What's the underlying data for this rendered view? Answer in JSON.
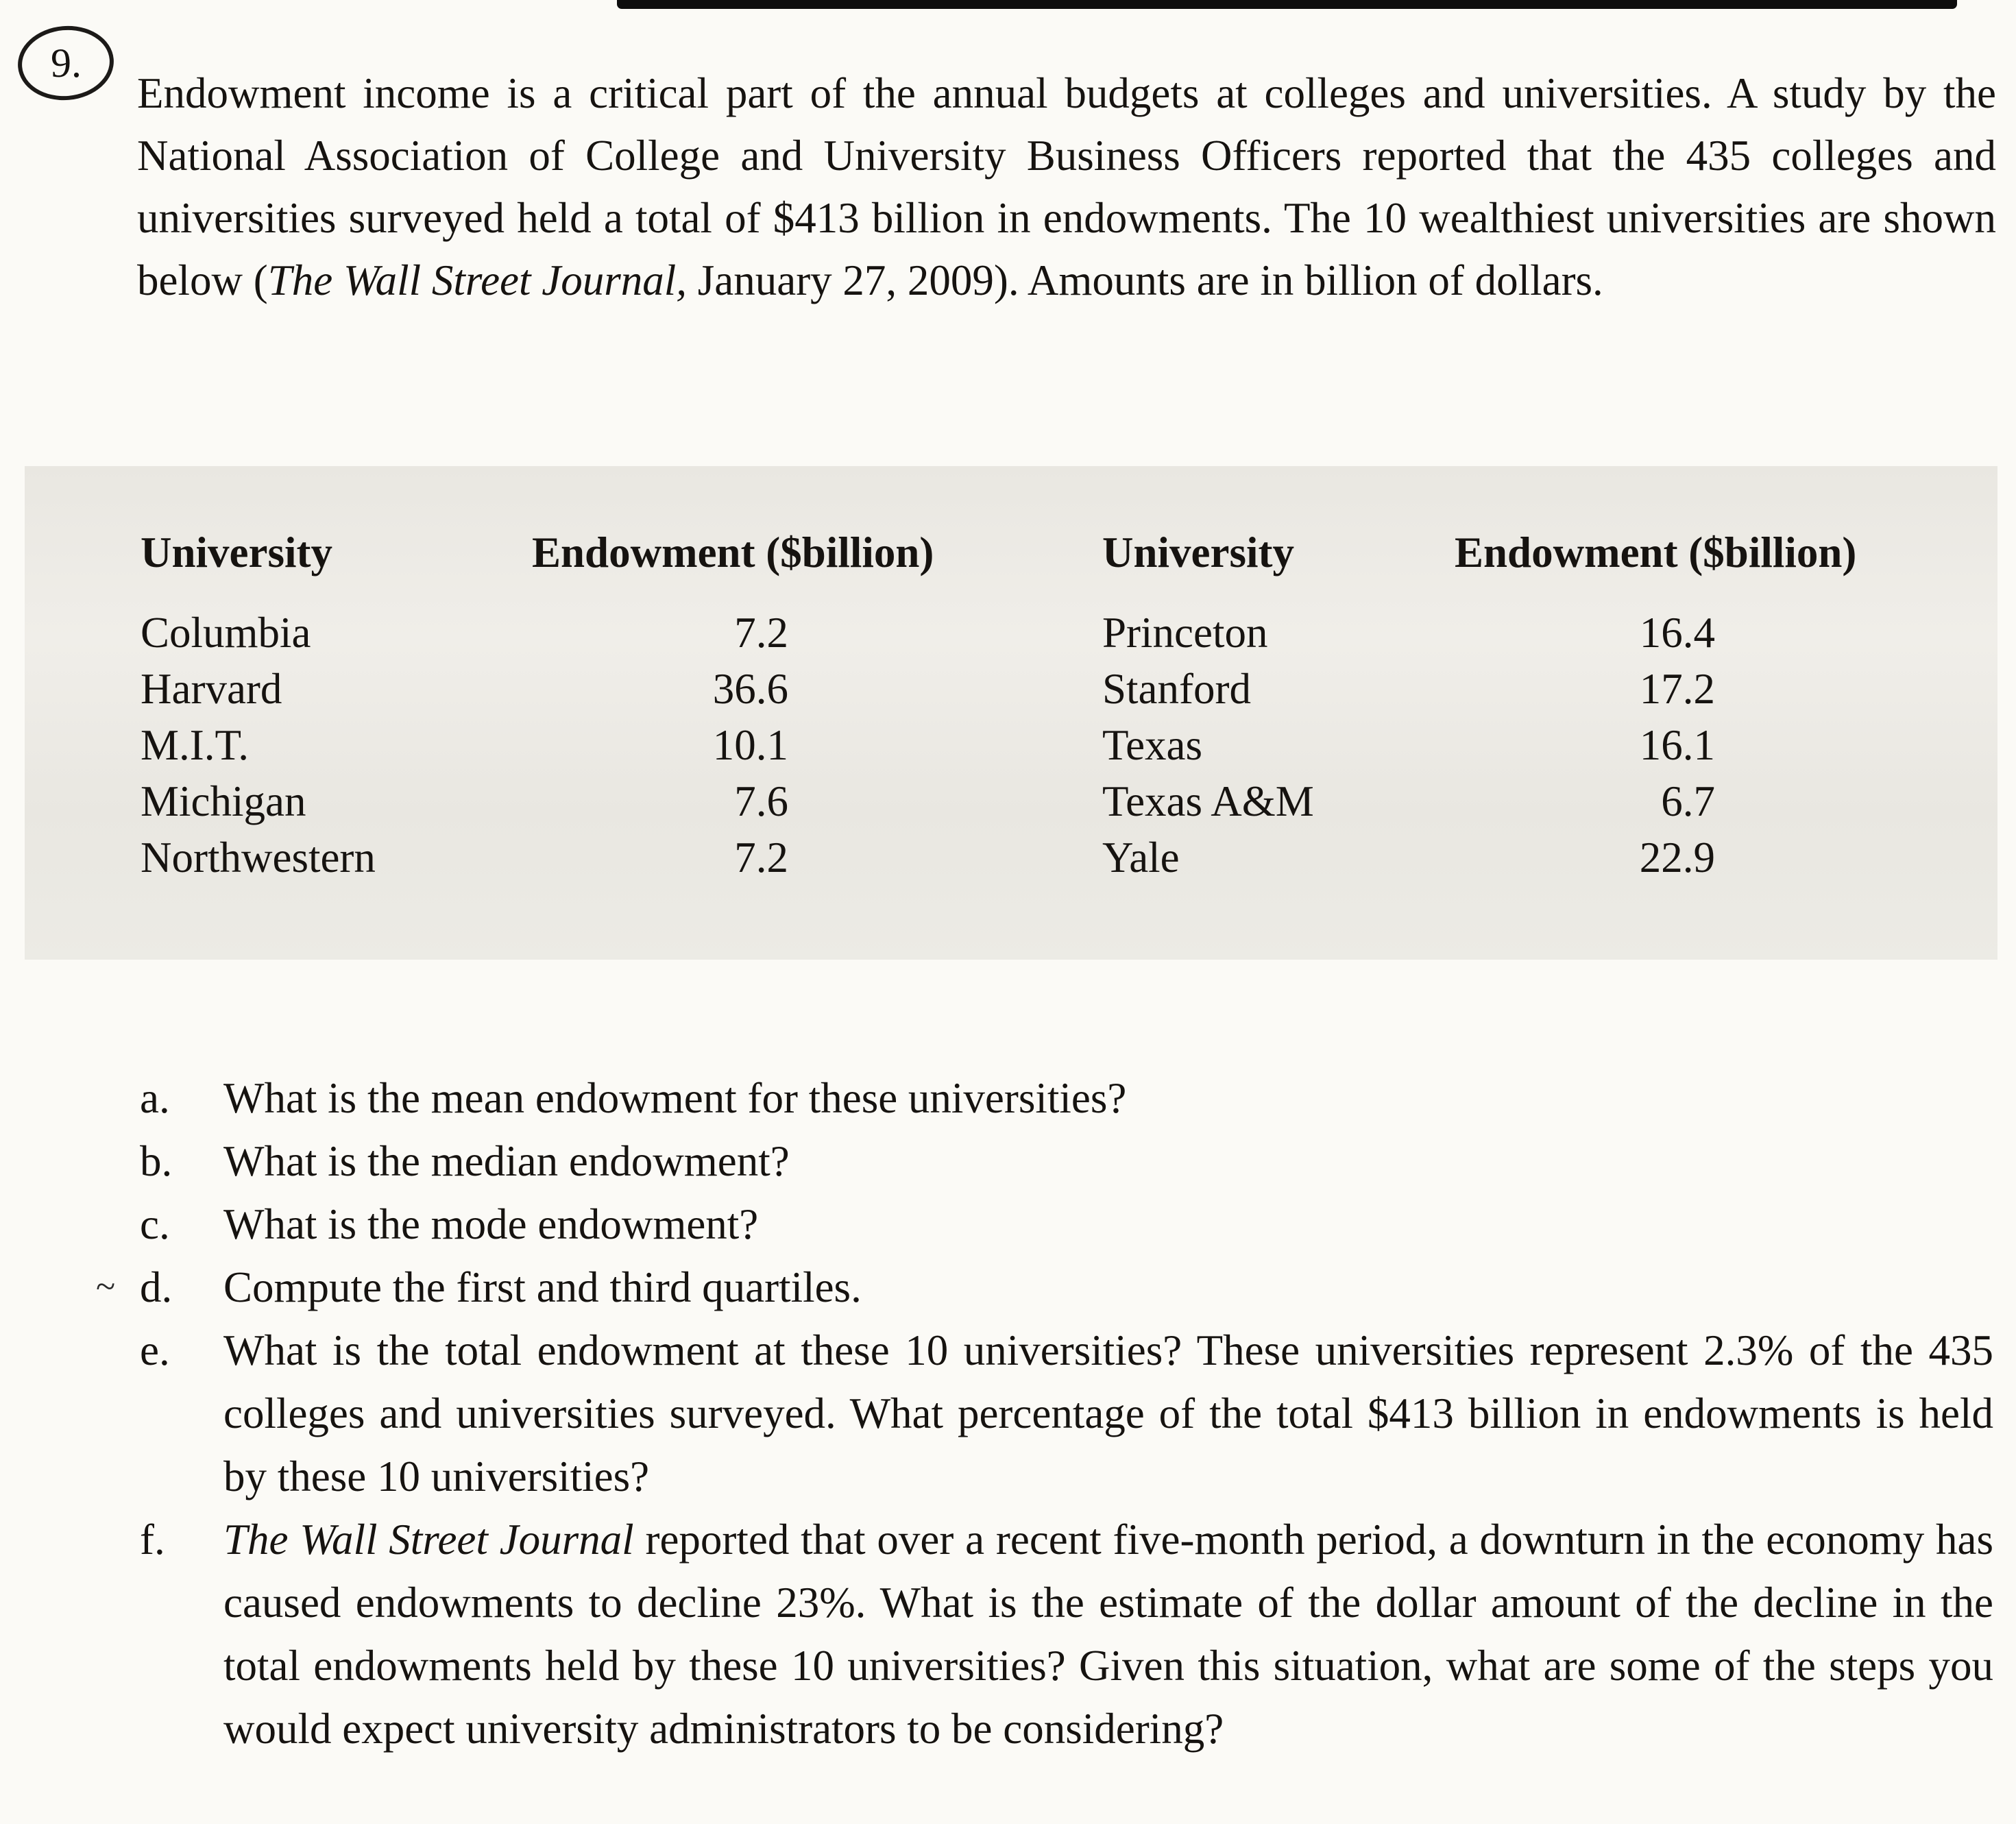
{
  "problem": {
    "number": "9.",
    "intro_part1": "Endowment income is a critical part of the annual budgets at colleges and universities. A study by the National Association of College and University Business Officers reported that the 435 colleges and universities surveyed held a total of $413 billion in endowments. The 10 wealthiest universities are shown below (",
    "intro_italic": "The Wall Street Journal,",
    "intro_part2": " January 27, 2009). Amounts are in billion of dollars."
  },
  "table": {
    "headers": [
      "University",
      "Endowment ($billion)",
      "University",
      "Endowment ($billion)"
    ],
    "rows": [
      [
        "Columbia",
        "7.2",
        "Princeton",
        "16.4"
      ],
      [
        "Harvard",
        "36.6",
        "Stanford",
        "17.2"
      ],
      [
        "M.I.T.",
        "10.1",
        "Texas",
        "16.1"
      ],
      [
        "Michigan",
        "7.6",
        "Texas A&M",
        "6.7"
      ],
      [
        "Northwestern",
        "7.2",
        "Yale",
        "22.9"
      ]
    ]
  },
  "questions": [
    {
      "label": "a.",
      "text": "What is the mean endowment for these universities?"
    },
    {
      "label": "b.",
      "text": "What is the median endowment?"
    },
    {
      "label": "c.",
      "text": "What is the mode endowment?"
    },
    {
      "label": "d.",
      "text": "Compute the first and third quartiles.",
      "margin_mark": "~"
    },
    {
      "label": "e.",
      "text": "What is the total endowment at these 10 universities? These universities represent 2.3% of the 435 colleges and universities surveyed. What percentage of the total $413 billion in endowments is held by these 10 universities?"
    },
    {
      "label": "f.",
      "text_italic": "The Wall Street Journal",
      "text_rest": " reported that over a recent five-month period, a downturn in the economy has caused endowments to decline 23%. What is the estimate of the dollar amount of the decline in the total endowments held by these 10 universities? Given this situation, what are some of the steps you would expect university administrators to be considering?"
    }
  ]
}
